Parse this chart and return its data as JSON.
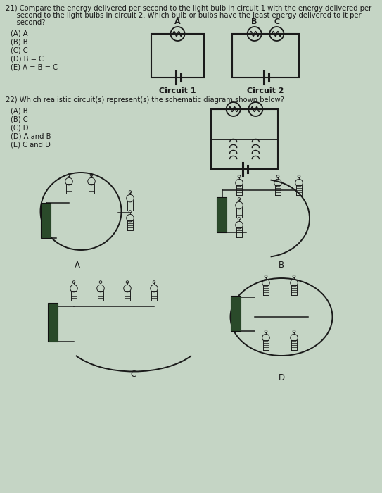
{
  "bg_color": "#c5d5c5",
  "q21_text_line1": "21) Compare the energy delivered per second to the light bulb in circuit 1 with the energy delivered per",
  "q21_text_line2": "     second to the light bulbs in circuit 2. Which bulb or bulbs have the least energy delivered to it per",
  "q21_text_line3": "     second?",
  "q21_choices": [
    "(A) A",
    "(B) B",
    "(C) C",
    "(D) B = C",
    "(E) A = B = C"
  ],
  "q22_text": "22) Which realistic circuit(s) represent(s) the schematic diagram shown below?",
  "q22_choices": [
    "(A) B",
    "(B) C",
    "(C) D",
    "(D) A and B",
    "(E) C and D"
  ],
  "circuit1_label": "Circuit 1",
  "circuit2_label": "Circuit 2",
  "label_A_c1": "A",
  "label_B_c2": "B",
  "label_C_c2": "C",
  "sub_labels": [
    "A",
    "B",
    "C",
    "D"
  ],
  "line_color": "#1a1a1a",
  "text_color": "#1a1a1a",
  "battery_color": "#2a4a2a"
}
